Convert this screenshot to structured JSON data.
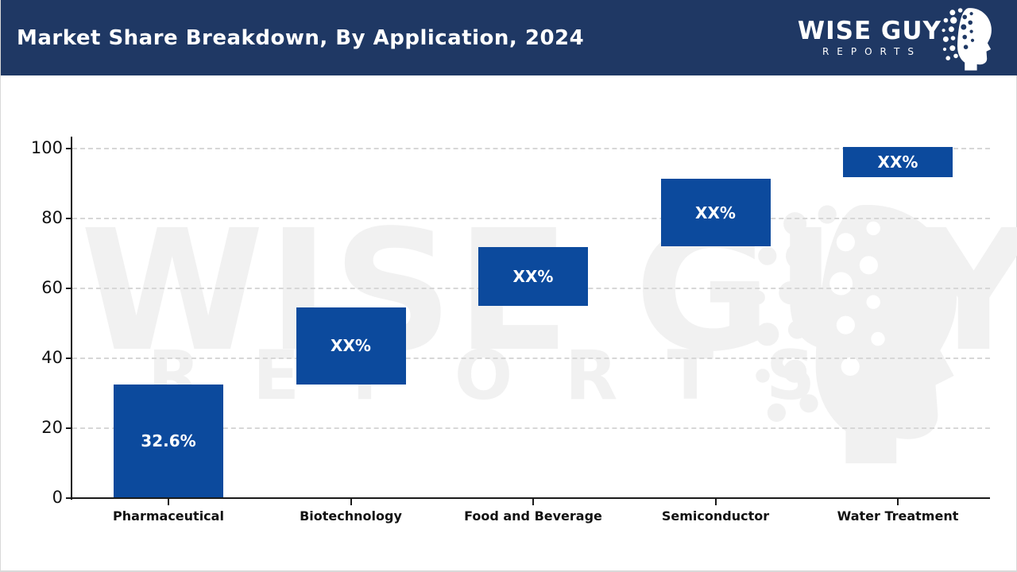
{
  "header": {
    "title": "Market Share Breakdown, By Application, 2024",
    "bg_color": "#1f3864",
    "logo": {
      "wordmark": "WISE GUY",
      "subtext": "REPORTS"
    }
  },
  "watermark": {
    "line1": "WISE GUY",
    "line2": "REPORTS"
  },
  "chart_data": {
    "type": "bar",
    "subtype": "waterfall",
    "title": "Market Share Breakdown, By Application, 2024",
    "xlabel": "",
    "ylabel": "",
    "categories": [
      "Pharmaceutical",
      "Biotechnology",
      "Food and Beverage",
      "Semiconductor",
      "Water Treatment"
    ],
    "segments": [
      {
        "category": "Pharmaceutical",
        "start": 0,
        "end": 32.6,
        "label": "32.6%"
      },
      {
        "category": "Biotechnology",
        "start": 32.6,
        "end": 54.5,
        "label": "XX%"
      },
      {
        "category": "Food and Beverage",
        "start": 55.0,
        "end": 71.9,
        "label": "XX%"
      },
      {
        "category": "Semiconductor",
        "start": 72.0,
        "end": 91.4,
        "label": "XX%"
      },
      {
        "category": "Water Treatment",
        "start": 91.8,
        "end": 100.5,
        "label": "XX%"
      }
    ],
    "y_ticks": [
      0,
      20,
      40,
      60,
      80,
      100
    ],
    "ylim": [
      0,
      103.5
    ],
    "grid": "horizontal-dashed",
    "legend": "none",
    "bar_color": "#0c4a9d",
    "label_color": "#ffffff"
  }
}
